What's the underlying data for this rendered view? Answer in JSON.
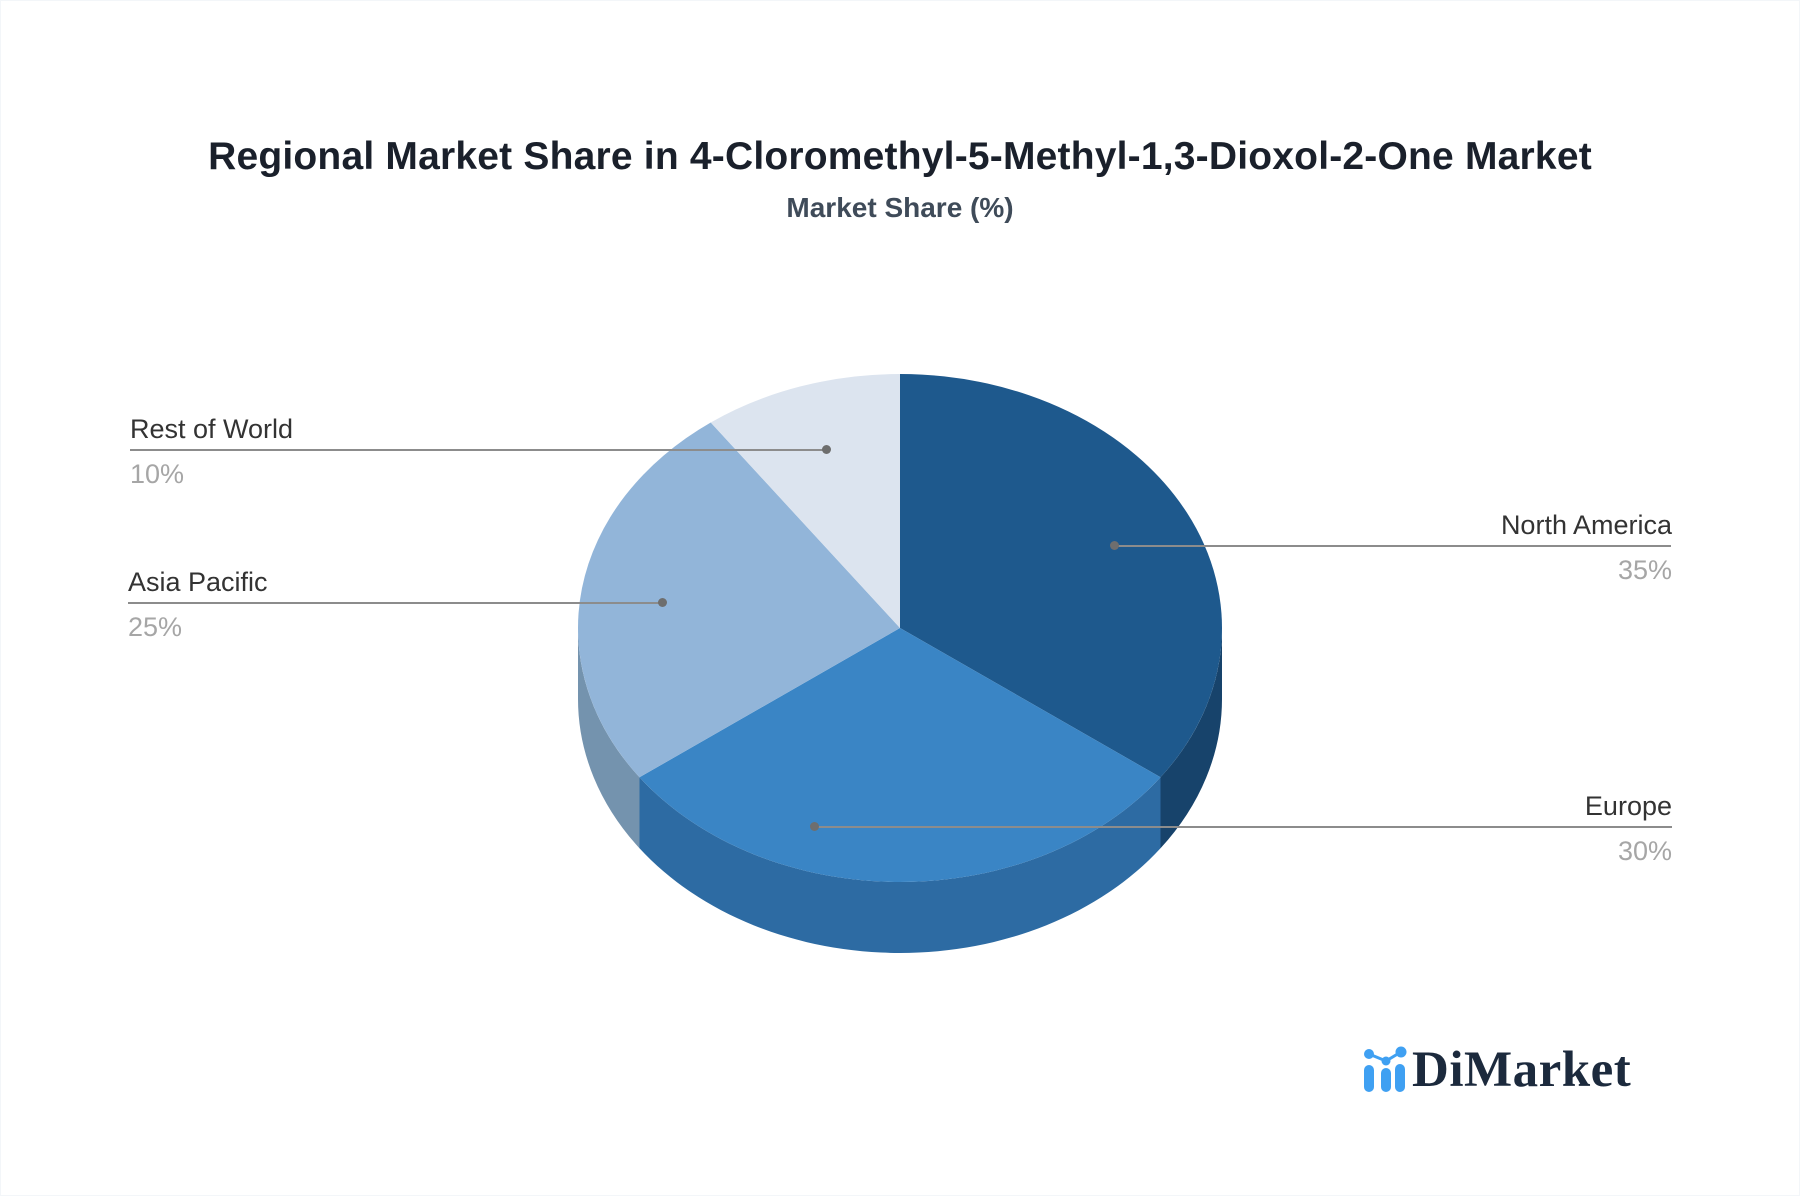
{
  "chart_data": {
    "type": "pie",
    "title": "Regional Market Share in 4-Cloromethyl-5-Methyl-1,3-Dioxol-2-One Market",
    "subtitle": "Market Share (%)",
    "unit": "%",
    "effect": "3d",
    "start_angle_deg": 0,
    "direction": "clockwise",
    "legend": "none",
    "slices": [
      {
        "label": "North America",
        "value": 35,
        "pct_text": "35%",
        "color": "#1E598D",
        "side_color": "#17436B",
        "label_side": "right"
      },
      {
        "label": "Europe",
        "value": 30,
        "pct_text": "30%",
        "color": "#3A85C5",
        "side_color": "#2D6BA3",
        "label_side": "right"
      },
      {
        "label": "Asia Pacific",
        "value": 25,
        "pct_text": "25%",
        "color": "#92B5D9",
        "side_color": "#7493AE",
        "label_side": "left"
      },
      {
        "label": "Rest of World",
        "value": 10,
        "pct_text": "10%",
        "color": "#DCE4EF",
        "side_color": "#B9C6D8",
        "label_side": "left"
      }
    ],
    "label_text_color": "#333333",
    "pct_text_color": "#A6A6A6",
    "leader_line_color": "#8C8C8C",
    "leader_dot_color": "#6E6E6E"
  },
  "logo": {
    "text": "DiMarket",
    "icon": "bar-chart-trend-icon",
    "text_color": "#1C2A3D",
    "icon_color": "#3FA0F2"
  }
}
